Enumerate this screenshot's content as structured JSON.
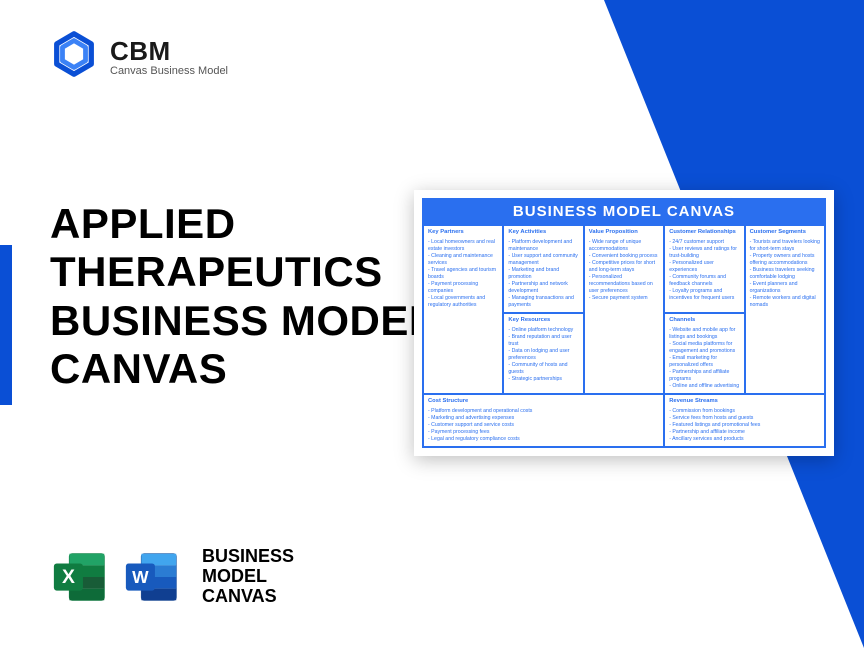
{
  "logo": {
    "abbrev": "CBM",
    "tagline": "Canvas Business Model"
  },
  "main_title": "APPLIED THERAPEUTICS BUSINESS MODEL CANVAS",
  "footer_label": "BUSINESS\nMODEL\nCANVAS",
  "colors": {
    "brand_blue": "#0a4fd5",
    "canvas_blue": "#2a6fef",
    "excel_green": "#107c41",
    "excel_dark": "#0e6b39",
    "word_blue": "#2b579a",
    "word_dark": "#1e3f73"
  },
  "canvas": {
    "title": "BUSINESS MODEL CANVAS",
    "blocks": {
      "kp": {
        "label": "Key Partners",
        "items": [
          "Local homeowners and real estate investors",
          "Cleaning and maintenance services",
          "Travel agencies and tourism boards",
          "Payment processing companies",
          "Local governments and regulatory authorities"
        ]
      },
      "ka": {
        "label": "Key Activities",
        "items": [
          "Platform development and maintenance",
          "User support and community management",
          "Marketing and brand promotion",
          "Partnership and network development",
          "Managing transactions and payments"
        ]
      },
      "kr": {
        "label": "Key Resources",
        "items": [
          "Online platform technology",
          "Brand reputation and user trust",
          "Data on lodging and user preferences",
          "Community of hosts and guests",
          "Strategic partnerships"
        ]
      },
      "vp": {
        "label": "Value Proposition",
        "items": [
          "Wide range of unique accommodations",
          "Convenient booking process",
          "Competitive prices for short and long-term stays",
          "Personalized recommendations based on user preferences",
          "Secure payment system"
        ]
      },
      "cr": {
        "label": "Customer Relationships",
        "items": [
          "24/7 customer support",
          "User reviews and ratings for trust-building",
          "Personalized user experiences",
          "Community forums and feedback channels",
          "Loyalty programs and incentives for frequent users"
        ]
      },
      "ch": {
        "label": "Channels",
        "items": [
          "Website and mobile app for listings and bookings",
          "Social media platforms for engagement and promotions",
          "Email marketing for personalized offers",
          "Partnerships and affiliate programs",
          "Online and offline advertising"
        ]
      },
      "cs": {
        "label": "Customer Segments",
        "items": [
          "Tourists and travelers looking for short-term stays",
          "Property owners and hosts offering accommodations",
          "Business travelers seeking comfortable lodging",
          "Event planners and organizations",
          "Remote workers and digital nomads"
        ]
      },
      "cost": {
        "label": "Cost Structure",
        "items": [
          "Platform development and operational costs",
          "Marketing and advertising expenses",
          "Customer support and service costs",
          "Payment processing fees",
          "Legal and regulatory compliance costs"
        ]
      },
      "rev": {
        "label": "Revenue Streams",
        "items": [
          "Commission from bookings",
          "Service fees from hosts and guests",
          "Featured listings and promotional fees",
          "Partnership and affiliate income",
          "Ancillary services and products"
        ]
      }
    }
  }
}
